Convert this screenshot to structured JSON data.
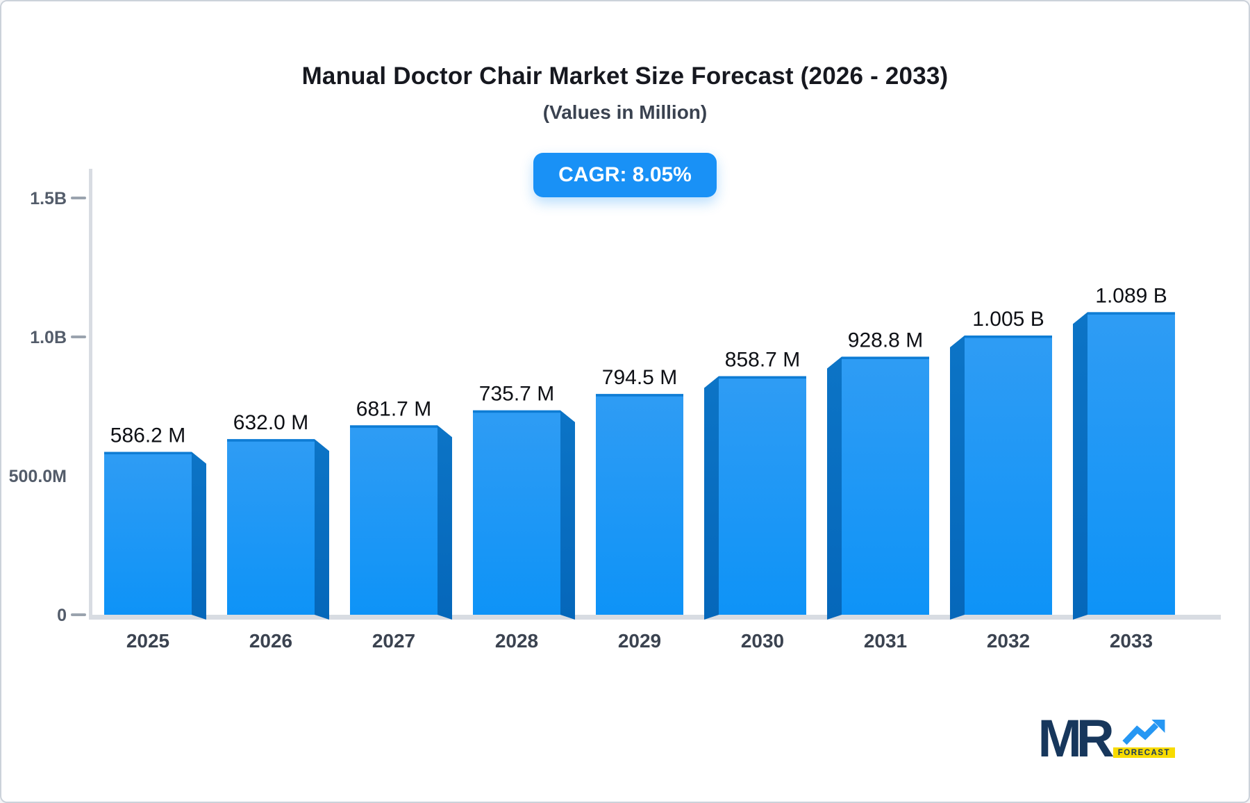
{
  "header": {
    "cagr_badge": "CAGR: 8.05%"
  },
  "chart_data": {
    "type": "bar",
    "title": "Manual Doctor Chair Market Size Forecast (2026 - 2033)",
    "subtitle": "(Values in Million)",
    "categories": [
      "2025",
      "2026",
      "2027",
      "2028",
      "2029",
      "2030",
      "2031",
      "2032",
      "2033"
    ],
    "values_millions": [
      586.2,
      632.0,
      681.7,
      735.7,
      794.5,
      858.7,
      928.8,
      1005,
      1089
    ],
    "value_labels": [
      "586.2 M",
      "632.0 M",
      "681.7 M",
      "735.7 M",
      "794.5 M",
      "858.7 M",
      "928.8 M",
      "1.005 B",
      "1.089 B"
    ],
    "xlabel": "",
    "ylabel": "",
    "ylim": [
      0,
      1500
    ],
    "yticks": [
      {
        "label": "1.5B",
        "value": 1500,
        "tick": true
      },
      {
        "label": "1.0B",
        "value": 1000,
        "tick": true
      },
      {
        "label": "500.0M",
        "value": 500,
        "tick": false
      },
      {
        "label": "0",
        "value": 0,
        "tick": true
      }
    ],
    "grid": false,
    "legend": "none",
    "cagr": "8.05%",
    "colors": {
      "bar_face_top": "#2f9cf4",
      "bar_face_bottom": "#0e93f7",
      "bar_side_top": "#0c74c6",
      "bar_side_bottom": "#0567ba",
      "bar_top_edge": "#0b79d0",
      "axis": "#d8dce2",
      "tick_dash": "#9aa3ae",
      "y_label": "#535c6a",
      "x_label": "#3b4350",
      "value_label": "#0e1015",
      "accent": "#1991f6"
    }
  },
  "logo": {
    "brand": "MR",
    "sub": "FORECAST",
    "arrow_icon_color": "#2697f3",
    "brand_color": "#17375c",
    "sub_bg": "#f8db00"
  }
}
